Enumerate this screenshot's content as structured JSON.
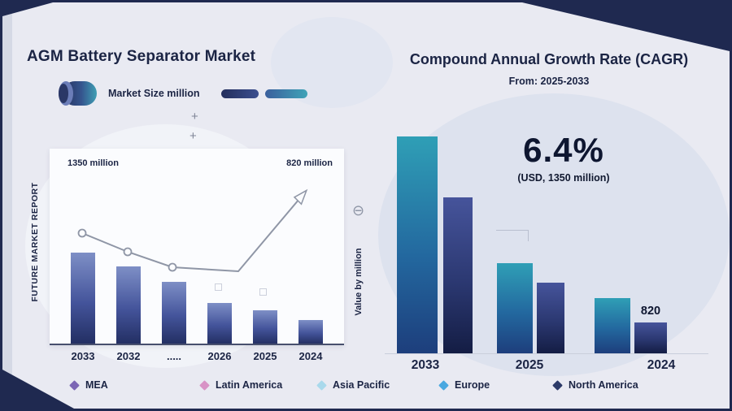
{
  "colors": {
    "navy": "#1f2950",
    "teal": "#3fa3b7",
    "background": "#e9eaf2"
  },
  "decor": {
    "plus": "+",
    "minus": "⊖"
  },
  "left_panel": {
    "title": "AGM Battery Separator Market",
    "legend_label": "Market Size million",
    "ylabel": "FUTURE MARKET REPORT",
    "annotation_left": "1350 million",
    "annotation_right": "820 million"
  },
  "right_panel": {
    "title": "Compound Annual Growth Rate (CAGR)",
    "subtitle": "From: 2025-2033",
    "cagr_value": "6.4%",
    "cagr_note": "(USD, 1350 million)",
    "ylabel": "Value by million",
    "bar_annotation": "820"
  },
  "footer_legend": [
    {
      "label": "MEA",
      "color": "#7c66b5"
    },
    {
      "label": "Latin America",
      "color": "#d893c6"
    },
    {
      "label": "Asia Pacific",
      "color": "#a9d9ec"
    },
    {
      "label": "Europe",
      "color": "#49a8e0"
    },
    {
      "label": "North America",
      "color": "#2c3a68"
    }
  ],
  "chart_data": [
    {
      "type": "bar",
      "title": "AGM Battery Separator Market",
      "subtitle": "Market Size million",
      "categories": [
        "2033",
        "2032",
        ".....",
        "2026",
        "2025",
        "2024"
      ],
      "values": [
        1350,
        1140,
        920,
        600,
        500,
        350
      ],
      "ylim": [
        0,
        1350
      ],
      "ylabel": "FUTURE MARKET REPORT",
      "annotations": [
        "1350 million",
        "820 million"
      ],
      "legend_position": "none",
      "grid": false,
      "note": "declining bars from 2033 to 2024 with trend line and upward arrow toward 820 million"
    },
    {
      "type": "bar",
      "title": "Compound Annual Growth Rate (CAGR)",
      "subtitle": "From: 2025-2033",
      "categories": [
        "2033",
        "2025",
        "2024"
      ],
      "series": [
        {
          "name": "primary",
          "values": [
            1350,
            560,
            345
          ]
        },
        {
          "name": "secondary",
          "values": [
            970,
            440,
            190
          ]
        }
      ],
      "ylim": [
        0,
        1350
      ],
      "ylabel": "Value by million",
      "annotations": [
        "6.4%",
        "(USD, 1350 million)",
        "820"
      ],
      "legend_position": "bottom",
      "grid": false
    }
  ]
}
